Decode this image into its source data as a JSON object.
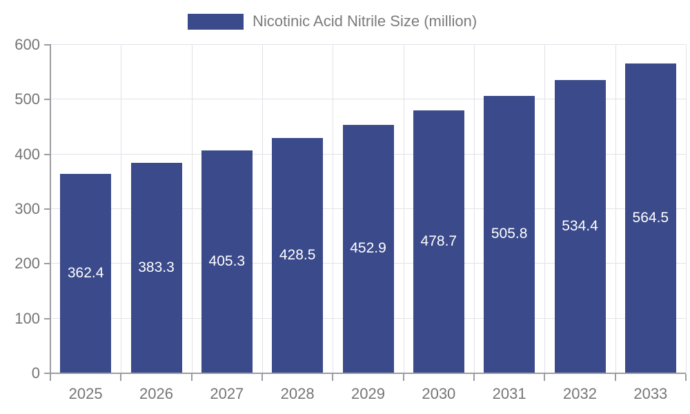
{
  "chart_data": {
    "type": "bar",
    "title": "",
    "legend": {
      "label": "Nicotinic Acid Nitrile Size (million)",
      "position": "top"
    },
    "categories": [
      "2025",
      "2026",
      "2027",
      "2028",
      "2029",
      "2030",
      "2031",
      "2032",
      "2033"
    ],
    "series": [
      {
        "name": "Nicotinic Acid Nitrile Size (million)",
        "values": [
          362.4,
          383.3,
          405.3,
          428.5,
          452.9,
          478.7,
          505.8,
          534.4,
          564.5
        ]
      }
    ],
    "bar_labels": [
      "362.4",
      "383.3",
      "405.3",
      "428.5",
      "452.9",
      "478.7",
      "505.8",
      "534.4",
      "564.5"
    ],
    "xlabel": "",
    "ylabel": "",
    "ylim": [
      0,
      600
    ],
    "yticks": [
      0,
      100,
      200,
      300,
      400,
      500,
      600
    ],
    "grid": true,
    "colors": {
      "bar": "#3a4a8a",
      "bar_label": "#ffffff",
      "grid": "#e2e2e8",
      "axis": "#9b9ba1",
      "tick_label": "#757575",
      "background": "#ffffff"
    }
  }
}
